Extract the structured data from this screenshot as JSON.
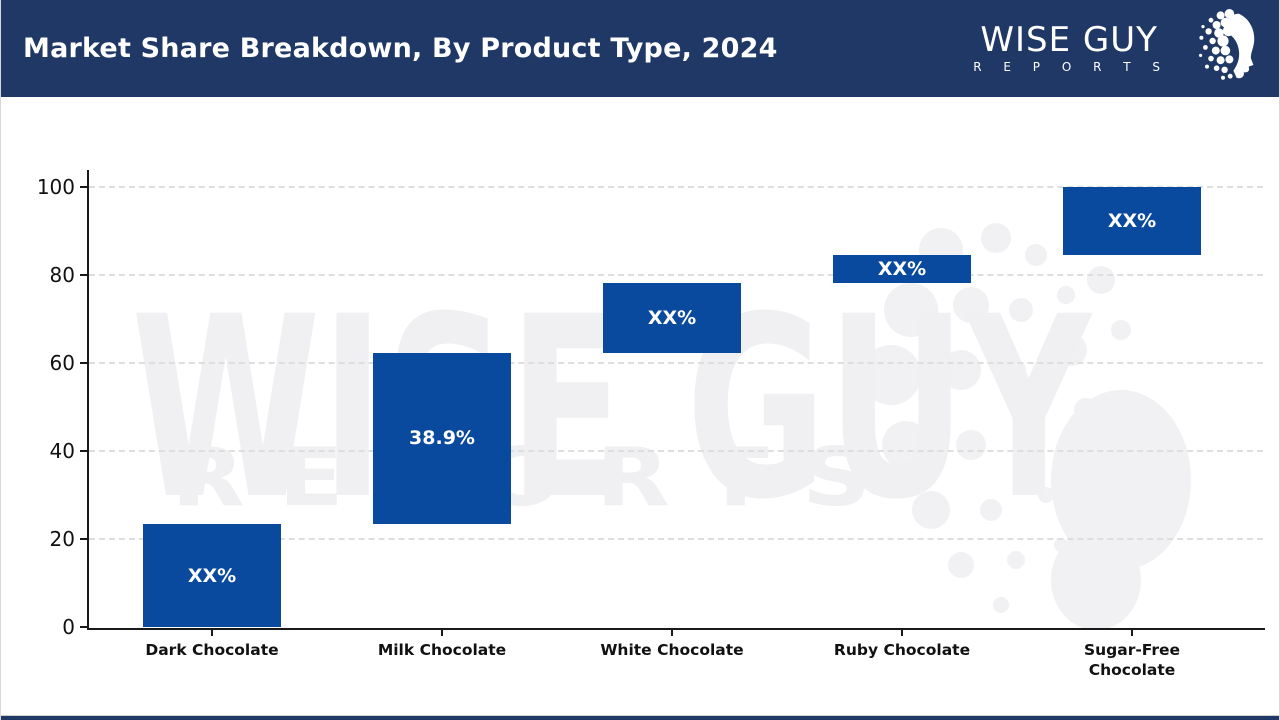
{
  "header": {
    "title": "Market Share Breakdown, By Product Type, 2024",
    "bg_color": "#203865",
    "logo": {
      "line1": "WISE GUY",
      "line2": "R E P O R T S"
    }
  },
  "watermark": {
    "line1": "WISE GUY",
    "line2": "R E P O R T S"
  },
  "chart_data": {
    "type": "bar",
    "subtype": "waterfall",
    "title": "Market Share Breakdown, By Product Type, 2024",
    "categories": [
      "Dark Chocolate",
      "Milk Chocolate",
      "White Chocolate",
      "Ruby Chocolate",
      "Sugar-Free Chocolate"
    ],
    "series": [
      {
        "name": "Market share (%)",
        "starts": [
          0,
          23.4,
          62.3,
          78.2,
          84.6
        ],
        "ends": [
          23.4,
          62.3,
          78.2,
          84.6,
          100
        ]
      }
    ],
    "bar_labels": [
      "XX%",
      "38.9%",
      "XX%",
      "XX%",
      "XX%"
    ],
    "y_ticks": [
      0,
      20,
      40,
      60,
      80,
      100
    ],
    "ylim": [
      0,
      105
    ],
    "xlabel": "",
    "ylabel": "",
    "grid": "horizontal-dashed",
    "legend": "none",
    "bar_color": "#0a4a9e",
    "bar_label_color": "#ffffff",
    "accent_navy": "#203865"
  }
}
